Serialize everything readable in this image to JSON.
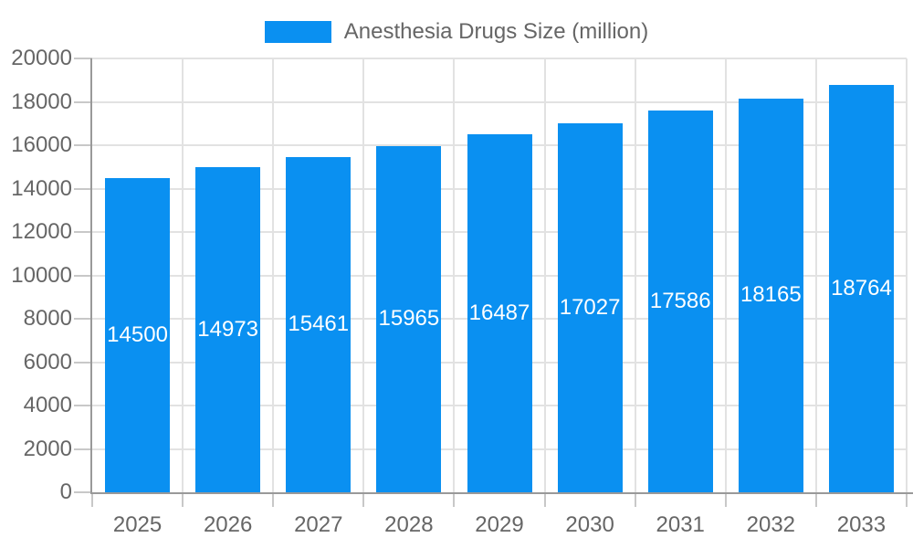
{
  "chart_data": {
    "type": "bar",
    "title": "Anesthesia Drugs Size (million)",
    "legend": [
      "Anesthesia Drugs Size (million)"
    ],
    "legend_position": "top-center",
    "categories": [
      "2025",
      "2026",
      "2027",
      "2028",
      "2029",
      "2030",
      "2031",
      "2032",
      "2033"
    ],
    "values": [
      14500,
      14973,
      15461,
      15965,
      16487,
      17027,
      17586,
      18165,
      18764
    ],
    "bar_value_labels": [
      "14500",
      "14973",
      "15461",
      "15965",
      "16487",
      "17027",
      "17586",
      "18165",
      "18764"
    ],
    "value_label_position": "inside-center",
    "xlabel": "",
    "ylabel": "",
    "ylim": [
      0,
      20000
    ],
    "ytick_step": 2000,
    "ytick_labels": [
      "0",
      "2000",
      "4000",
      "6000",
      "8000",
      "10000",
      "12000",
      "14000",
      "16000",
      "18000",
      "20000"
    ],
    "grid": "on",
    "colors": {
      "bar": "#0a90f1",
      "bar_value_label": "#ffffff",
      "axis_text": "#666666",
      "legend_text": "#666666",
      "axis_line": "#999999",
      "gridline": "#e2e2e2",
      "tick": "#c8c8c8",
      "background": "#ffffff"
    }
  }
}
